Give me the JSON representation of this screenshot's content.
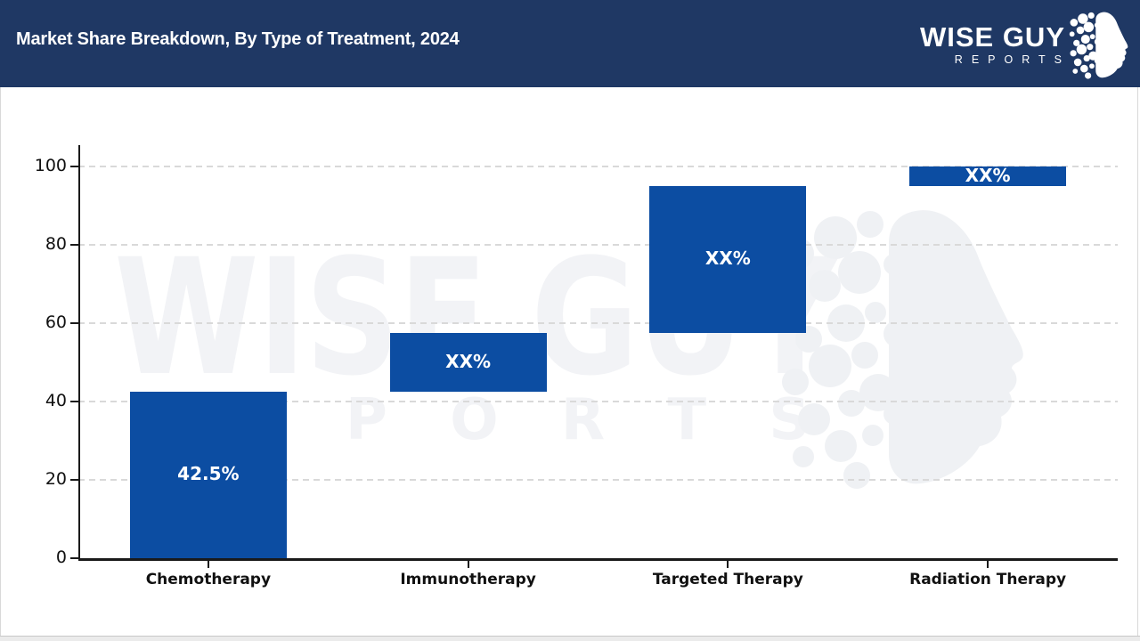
{
  "header": {
    "title": "Market Share Breakdown, By Type of Treatment, 2024",
    "bg_color": "#1f3864"
  },
  "logo": {
    "name": "WISE GUY",
    "tagline": "REPORTS",
    "head_icon": "dotted-head-profile"
  },
  "watermark": {
    "line1": "WISE GUY",
    "line2": "P O R T S",
    "head_icon": "dotted-head-profile"
  },
  "chart_data": {
    "type": "bar",
    "subtype": "waterfall",
    "title": "Market Share Breakdown, By Type of Treatment, 2024",
    "categories": [
      "Chemotherapy",
      "Immunotherapy",
      "Targeted Therapy",
      "Radiation Therapy"
    ],
    "segments": [
      {
        "category": "Chemotherapy",
        "start": 0,
        "end": 42.5,
        "label": "42.5%"
      },
      {
        "category": "Immunotherapy",
        "start": 42.5,
        "end": 57.5,
        "label": "XX%"
      },
      {
        "category": "Targeted Therapy",
        "start": 57.5,
        "end": 95,
        "label": "XX%"
      },
      {
        "category": "Radiation Therapy",
        "start": 95,
        "end": 100,
        "label": "XX%"
      }
    ],
    "y_ticks": [
      0,
      20,
      40,
      60,
      80,
      100
    ],
    "ylim": [
      0,
      105
    ],
    "xlabel": "",
    "ylabel": "",
    "bar_color": "#0c4da2",
    "grid": "horizontal-dashed",
    "legend": "none"
  }
}
